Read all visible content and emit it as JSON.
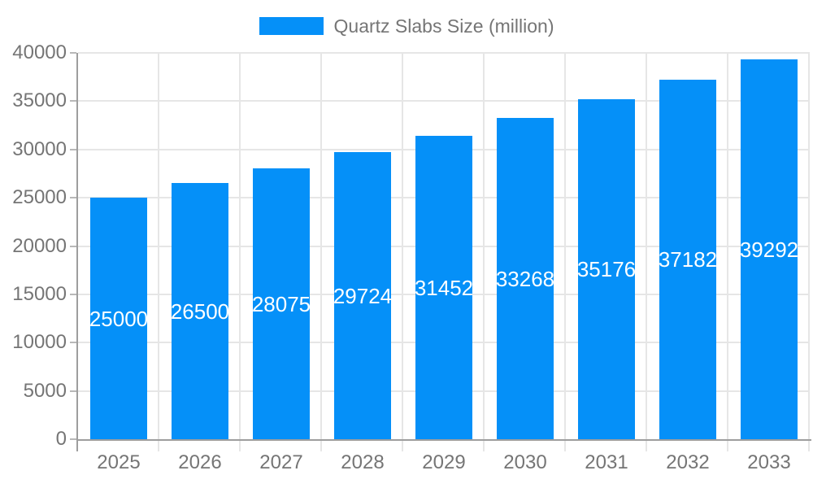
{
  "legend": {
    "label": "Quartz Slabs Size (million)"
  },
  "chart_data": {
    "type": "bar",
    "title": "Quartz Slabs Size (million)",
    "categories": [
      "2025",
      "2026",
      "2027",
      "2028",
      "2029",
      "2030",
      "2031",
      "2032",
      "2033"
    ],
    "series": [
      {
        "name": "Quartz Slabs Size (million)",
        "values": [
          25000,
          26500,
          28075,
          29724,
          31452,
          33268,
          35176,
          37182,
          39292
        ]
      }
    ],
    "xlabel": "",
    "ylabel": "",
    "ylim": [
      0,
      40000
    ],
    "ytick_step": 5000,
    "ytick_labels": [
      "0",
      "5000",
      "10000",
      "15000",
      "20000",
      "25000",
      "30000",
      "35000",
      "40000"
    ],
    "grid": true,
    "legend_position": "top-center",
    "value_labels": "inside-center",
    "colors": {
      "bar": "#0590f8",
      "value_text": "#ffffff",
      "axis_text": "#757575",
      "legend_text": "#757575",
      "gridline": "#e6e6e6",
      "axis_line": "#9e9e9e",
      "tick": "#b8b8b8",
      "background": "#ffffff"
    }
  }
}
